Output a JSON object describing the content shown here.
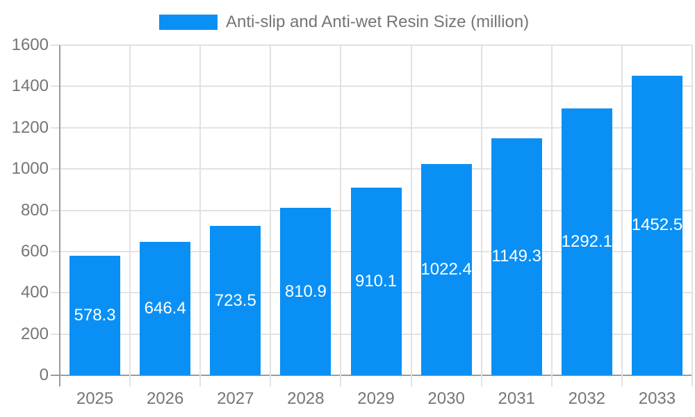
{
  "colors": {
    "bar": "#0a90f5",
    "grid_line": "#e2e2e2",
    "axis_line": "#9a9a9a",
    "axis_text": "#757575",
    "value_text": "#ffffff",
    "background": "#ffffff"
  },
  "chart_data": {
    "type": "bar",
    "title": "Anti-slip and Anti-wet Resin Size (million)",
    "legend": [
      "Anti-slip and Anti-wet Resin Size (million)"
    ],
    "legend_position": "top",
    "categories": [
      "2025",
      "2026",
      "2027",
      "2028",
      "2029",
      "2030",
      "2031",
      "2032",
      "2033"
    ],
    "values": [
      578.3,
      646.4,
      723.5,
      810.9,
      910.1,
      1022.4,
      1149.3,
      1292.1,
      1452.5
    ],
    "value_labels": [
      "578.3",
      "646.4",
      "723.5",
      "810.9",
      "910.1",
      "1022.4",
      "1149.3",
      "1292.1",
      "1452.5"
    ],
    "xlabel": "",
    "ylabel": "",
    "ylim": [
      0,
      1600
    ],
    "yticks": [
      0,
      200,
      400,
      600,
      800,
      1000,
      1200,
      1400,
      1600
    ],
    "grid": true
  }
}
